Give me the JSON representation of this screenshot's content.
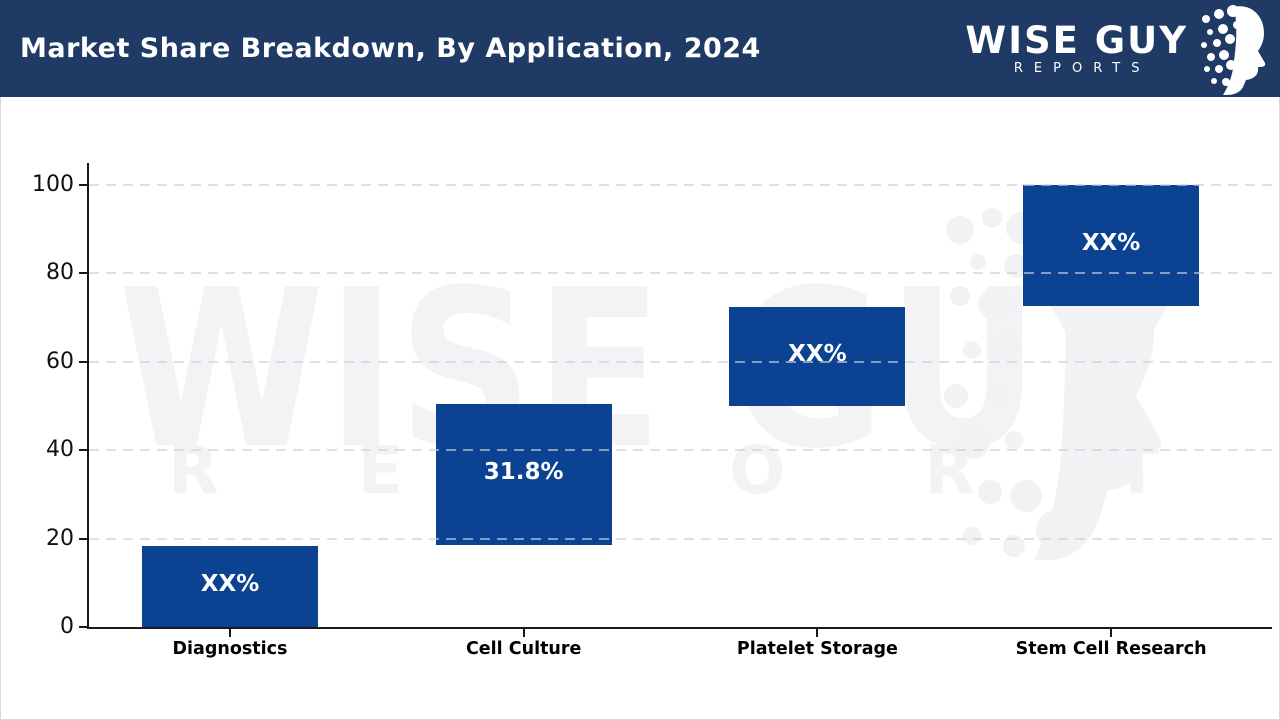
{
  "header": {
    "title": "Market Share Breakdown, By Application, 2024",
    "logo": {
      "line1": "WISE GUY",
      "line2": "REPORTS"
    }
  },
  "watermark": {
    "line1": "WISE GUY",
    "line2": "R E P O R T S"
  },
  "colors": {
    "header_bg": "#1f3a64",
    "bar": "#0b4291",
    "axis": "#1a1a1a",
    "gridline": "#dfe2e8",
    "watermark": "#f3f3f5",
    "bar_label": "#ffffff"
  },
  "chart_data": {
    "type": "bar",
    "subtype": "waterfall-stacked-segments",
    "title": "Market Share Breakdown, By Application, 2024",
    "categories": [
      "Diagnostics",
      "Cell Culture",
      "Platelet Storage",
      "Stem Cell Research"
    ],
    "segments": [
      {
        "category": "Diagnostics",
        "start": 0,
        "end": 18.4,
        "label": "XX%"
      },
      {
        "category": "Cell Culture",
        "start": 18.6,
        "end": 50.4,
        "label": "31.8%"
      },
      {
        "category": "Platelet Storage",
        "start": 50.0,
        "end": 72.4,
        "label": "XX%"
      },
      {
        "category": "Stem Cell Research",
        "start": 72.5,
        "end": 100,
        "label": "XX%"
      }
    ],
    "yticks": [
      0,
      20,
      40,
      60,
      80,
      100
    ],
    "ylim": [
      0,
      104.9
    ],
    "xlabel": "",
    "ylabel": "",
    "grid": "horizontal-dashed",
    "legend": null
  }
}
